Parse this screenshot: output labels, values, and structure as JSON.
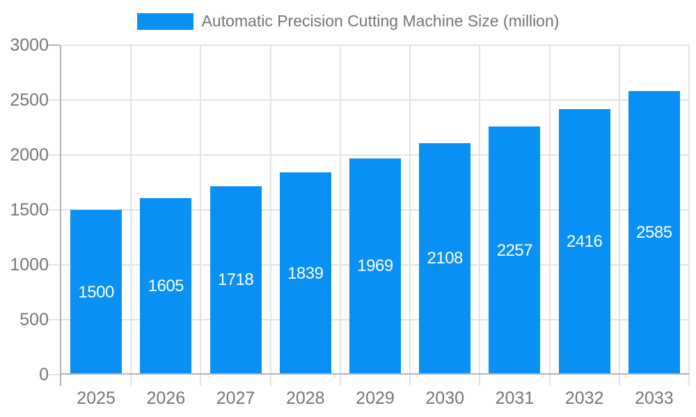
{
  "legend": {
    "label": "Automatic Precision Cutting Machine Size (million)"
  },
  "colors": {
    "bar": "#0890F5",
    "grid": "#E3E3E3",
    "axis": "#B3B3B3",
    "label": "#757575",
    "bar_label": "#FFFFFF",
    "background": "#FFFFFF"
  },
  "chart_data": {
    "type": "bar",
    "title": "Automatic Precision Cutting Machine Size (million)",
    "categories": [
      "2025",
      "2026",
      "2027",
      "2028",
      "2029",
      "2030",
      "2031",
      "2032",
      "2033"
    ],
    "values": [
      1500,
      1605,
      1718,
      1839,
      1969,
      2108,
      2257,
      2416,
      2585
    ],
    "xlabel": "",
    "ylabel": "",
    "ylim": [
      0,
      3000
    ],
    "yticks": [
      0,
      500,
      1000,
      1500,
      2000,
      2500,
      3000
    ],
    "grid": true,
    "legend_position": "top",
    "value_labels": "inside-center"
  }
}
